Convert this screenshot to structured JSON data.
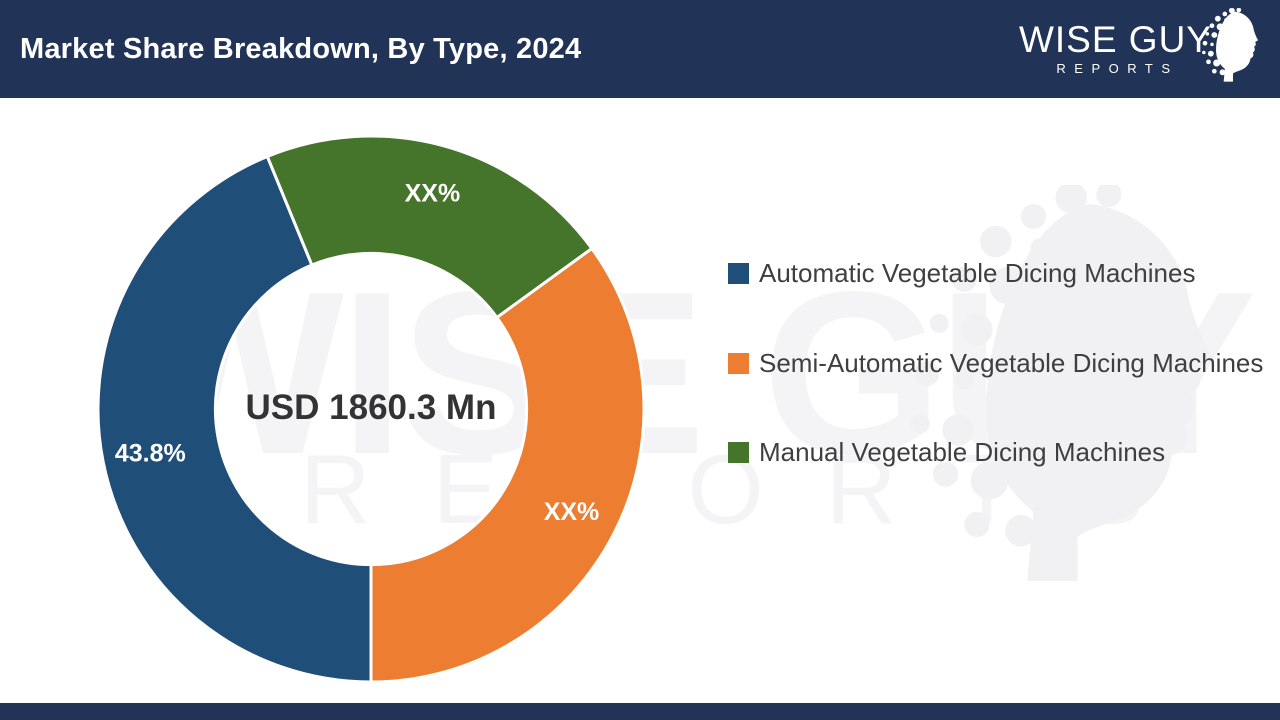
{
  "header": {
    "title": "Market Share Breakdown, By Type, 2024",
    "logo": {
      "line1": "WISE GUY",
      "line2": "REPORTS"
    }
  },
  "watermark": {
    "line1": "WISE GUY",
    "line2": "REPORTS"
  },
  "chart_data": {
    "type": "donut",
    "title": "Market Share Breakdown, By Type, 2024",
    "center_label": "USD 1860.3 Mn",
    "start_angle_compass_deg": 180,
    "direction": "clockwise",
    "donut_hole_ratio": 0.57,
    "legend_position": "right",
    "segments": [
      {
        "label": "Automatic Vegetable Dicing Machines",
        "display_value": "43.8%",
        "value_pct": 43.8,
        "color": "#1F4E79"
      },
      {
        "label": "Manual Vegetable Dicing Machines",
        "display_value": "XX%",
        "value_pct": 21.2,
        "color": "#44752B"
      },
      {
        "label": "Semi-Automatic Vegetable Dicing Machines",
        "display_value": "XX%",
        "value_pct": 35.0,
        "color": "#ED7D31"
      }
    ]
  },
  "legend": {
    "items": [
      {
        "label": "Automatic Vegetable Dicing Machines",
        "color": "#1F4E79"
      },
      {
        "label": "Semi-Automatic Vegetable Dicing Machines",
        "color": "#ED7D31"
      },
      {
        "label": "Manual Vegetable Dicing Machines",
        "color": "#44752B"
      }
    ]
  },
  "colors": {
    "header_bg": "#213457",
    "footer_bg": "#213457",
    "center_text": "#333333",
    "legend_text": "#3F3F3F",
    "slice_label_text": "#FFFFFF",
    "watermark": "#F4F4F6"
  }
}
